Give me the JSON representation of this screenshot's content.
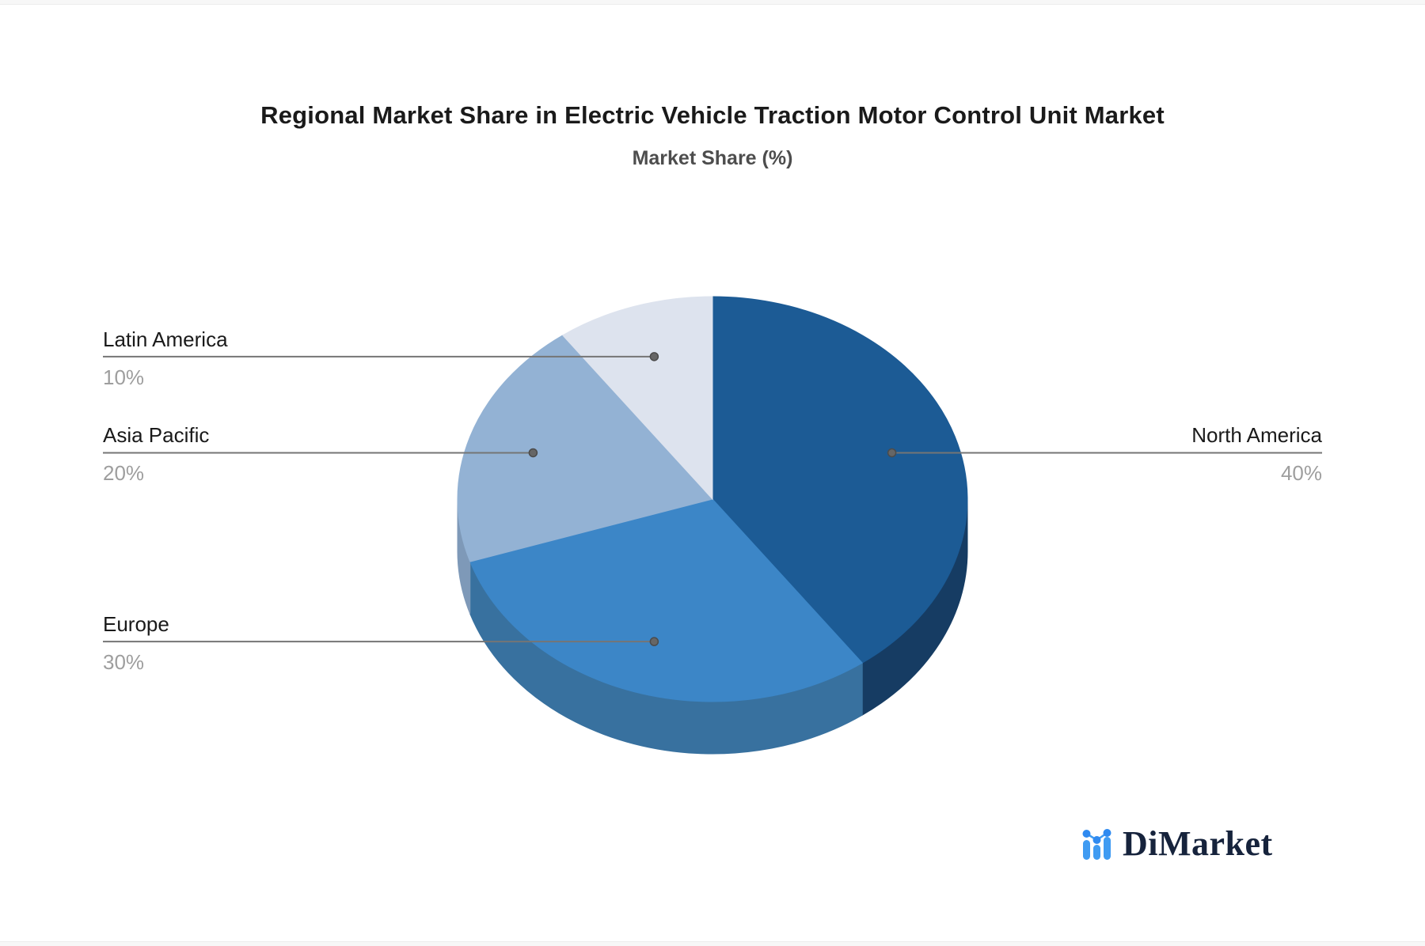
{
  "header": {
    "title": "Regional Market Share in Electric Vehicle Traction Motor Control Unit Market",
    "subtitle": "Market Share (%)"
  },
  "chart_data": {
    "type": "pie",
    "style": "3d",
    "title": "Regional Market Share in Electric Vehicle Traction Motor Control Unit Market",
    "subtitle": "Market Share (%)",
    "unit": "%",
    "start_angle_deg": 0,
    "direction": "clockwise",
    "legend_position": "callouts",
    "slices": [
      {
        "label": "North America",
        "value": 40,
        "display": "40%",
        "color": "#1c5b95",
        "side_color": "#163c63"
      },
      {
        "label": "Europe",
        "value": 30,
        "display": "30%",
        "color": "#3c86c7",
        "side_color": "#38719f"
      },
      {
        "label": "Asia Pacific",
        "value": 20,
        "display": "20%",
        "color": "#93b2d4",
        "side_color": "#7e99b8"
      },
      {
        "label": "Latin America",
        "value": 10,
        "display": "10%",
        "color": "#dde3ee",
        "side_color": "#c2ccdb"
      }
    ],
    "colors": {
      "label_text": "#1a1a1a",
      "value_text": "#9e9e9e",
      "leader_line": "#757575",
      "leader_dot": "#666666"
    }
  },
  "logo": {
    "text": "DiMarket",
    "icon": "bar-chart-icon",
    "icon_color": "#3f9bf2",
    "text_color": "#16233c"
  }
}
